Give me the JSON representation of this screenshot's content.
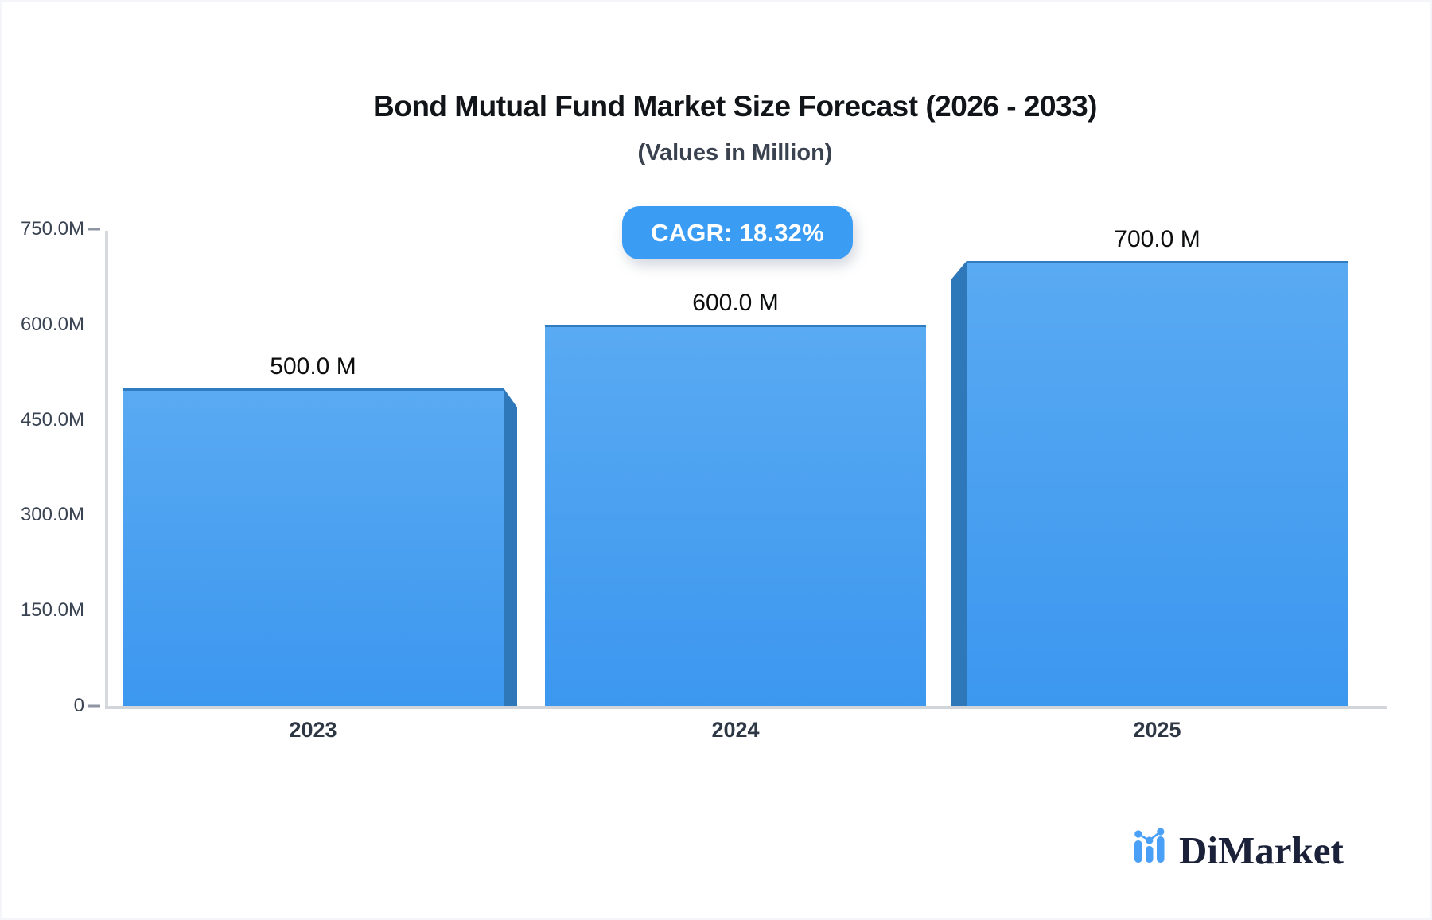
{
  "header": {
    "title": "Bond Mutual Fund Market Size Forecast (2026 - 2033)",
    "subtitle": "(Values in Million)",
    "cagr_label": "CAGR: 18.32%"
  },
  "chart_data": {
    "type": "bar",
    "title": "Bond Mutual Fund Market Size Forecast (2026 - 2033)",
    "subtitle": "(Values in Million)",
    "unit": "Million",
    "categories": [
      "2023",
      "2024",
      "2025"
    ],
    "values": [
      500,
      600,
      700
    ],
    "bar_labels": [
      "500.0 M",
      "600.0 M",
      "700.0 M"
    ],
    "cagr_percent": 18.32,
    "ylim": [
      0,
      750
    ],
    "yticks": {
      "values": [
        750,
        600,
        450,
        300,
        150,
        0
      ],
      "labels": [
        "750.0M",
        "600.0M",
        "450.0M",
        "300.0M",
        "150.0M",
        "0"
      ]
    },
    "grid": false,
    "legend": false
  },
  "colors": {
    "bar_top": "#59aaf2",
    "bar_bottom": "#3c97ef",
    "bar_bevel": "#2e77b8",
    "badge_bg": "#3b9cf4",
    "axis_gray": "#d4d8dd",
    "logo_navy": "#1a2138",
    "logo_blue": "#4aa0f6"
  },
  "logo": {
    "text": "DiMarket",
    "icon": "bar-chart-sparkline-icon"
  }
}
